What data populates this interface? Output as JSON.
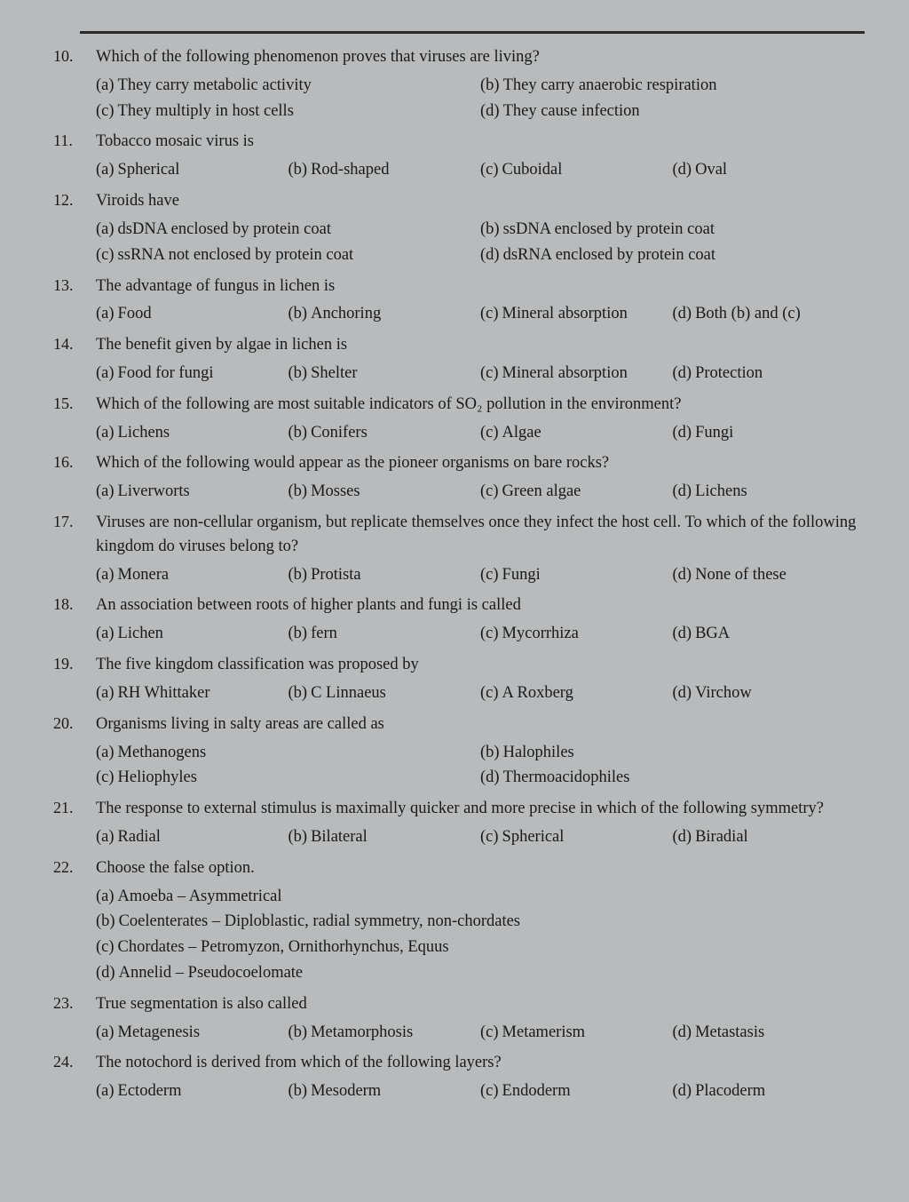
{
  "colors": {
    "background": "#b8babb",
    "text": "#1a1a1a",
    "rule": "#2a2a2a"
  },
  "typography": {
    "font_family": "Georgia, Times New Roman, serif",
    "body_size_pt": 14,
    "line_height": 1.45
  },
  "questions": [
    {
      "num": "10.",
      "text": "Which of the following phenomenon proves that viruses are living?",
      "layout": "two",
      "options": [
        {
          "label": "(a)",
          "text": "They carry metabolic activity"
        },
        {
          "label": "(b)",
          "text": "They carry anaerobic respiration"
        },
        {
          "label": "(c)",
          "text": "They multiply in host cells"
        },
        {
          "label": "(d)",
          "text": "They cause infection"
        }
      ]
    },
    {
      "num": "11.",
      "text": "Tobacco mosaic virus is",
      "layout": "four",
      "options": [
        {
          "label": "(a)",
          "text": "Spherical"
        },
        {
          "label": "(b)",
          "text": "Rod-shaped"
        },
        {
          "label": "(c)",
          "text": "Cuboidal"
        },
        {
          "label": "(d)",
          "text": "Oval"
        }
      ]
    },
    {
      "num": "12.",
      "text": "Viroids have",
      "layout": "two",
      "options": [
        {
          "label": "(a)",
          "text": "dsDNA enclosed by protein coat"
        },
        {
          "label": "(b)",
          "text": "ssDNA enclosed by protein coat"
        },
        {
          "label": "(c)",
          "text": "ssRNA not enclosed by protein coat"
        },
        {
          "label": "(d)",
          "text": "dsRNA enclosed by protein coat"
        }
      ]
    },
    {
      "num": "13.",
      "text": "The advantage of fungus in lichen is",
      "layout": "four",
      "options": [
        {
          "label": "(a)",
          "text": "Food"
        },
        {
          "label": "(b)",
          "text": "Anchoring"
        },
        {
          "label": "(c)",
          "text": "Mineral absorption"
        },
        {
          "label": "(d)",
          "text": "Both (b) and (c)"
        }
      ]
    },
    {
      "num": "14.",
      "text": "The benefit given by algae in lichen is",
      "layout": "four",
      "options": [
        {
          "label": "(a)",
          "text": "Food for fungi"
        },
        {
          "label": "(b)",
          "text": "Shelter"
        },
        {
          "label": "(c)",
          "text": "Mineral absorption"
        },
        {
          "label": "(d)",
          "text": "Protection"
        }
      ]
    },
    {
      "num": "15.",
      "text": "Which of the following are most suitable indicators of SO₂ pollution in the environment?",
      "layout": "four",
      "options": [
        {
          "label": "(a)",
          "text": "Lichens"
        },
        {
          "label": "(b)",
          "text": "Conifers"
        },
        {
          "label": "(c)",
          "text": "Algae"
        },
        {
          "label": "(d)",
          "text": "Fungi"
        }
      ]
    },
    {
      "num": "16.",
      "text": "Which of the following would appear as the pioneer organisms on bare rocks?",
      "layout": "four",
      "options": [
        {
          "label": "(a)",
          "text": "Liverworts"
        },
        {
          "label": "(b)",
          "text": "Mosses"
        },
        {
          "label": "(c)",
          "text": "Green algae"
        },
        {
          "label": "(d)",
          "text": "Lichens"
        }
      ]
    },
    {
      "num": "17.",
      "text": "Viruses are non-cellular organism, but replicate themselves once they infect the host cell. To which of the following kingdom do viruses belong to?",
      "layout": "four",
      "options": [
        {
          "label": "(a)",
          "text": "Monera"
        },
        {
          "label": "(b)",
          "text": "Protista"
        },
        {
          "label": "(c)",
          "text": "Fungi"
        },
        {
          "label": "(d)",
          "text": "None of these"
        }
      ]
    },
    {
      "num": "18.",
      "text": "An association between roots of higher plants and fungi is called",
      "layout": "four",
      "options": [
        {
          "label": "(a)",
          "text": "Lichen"
        },
        {
          "label": "(b)",
          "text": "fern"
        },
        {
          "label": "(c)",
          "text": "Mycorrhiza"
        },
        {
          "label": "(d)",
          "text": "BGA"
        }
      ]
    },
    {
      "num": "19.",
      "text": "The five kingdom classification was proposed by",
      "layout": "four",
      "options": [
        {
          "label": "(a)",
          "text": "RH Whittaker"
        },
        {
          "label": "(b)",
          "text": "C Linnaeus"
        },
        {
          "label": "(c)",
          "text": "A Roxberg"
        },
        {
          "label": "(d)",
          "text": "Virchow"
        }
      ]
    },
    {
      "num": "20.",
      "text": "Organisms living in salty areas are called as",
      "layout": "two",
      "options": [
        {
          "label": "(a)",
          "text": "Methanogens"
        },
        {
          "label": "(b)",
          "text": "Halophiles"
        },
        {
          "label": "(c)",
          "text": "Heliophyles"
        },
        {
          "label": "(d)",
          "text": "Thermoacidophiles"
        }
      ]
    },
    {
      "num": "21.",
      "text": "The response to external stimulus is maximally quicker and more precise in which of the following symmetry?",
      "layout": "four",
      "options": [
        {
          "label": "(a)",
          "text": "Radial"
        },
        {
          "label": "(b)",
          "text": "Bilateral"
        },
        {
          "label": "(c)",
          "text": "Spherical"
        },
        {
          "label": "(d)",
          "text": "Biradial"
        }
      ]
    },
    {
      "num": "22.",
      "text": "Choose the false option.",
      "layout": "one",
      "options": [
        {
          "label": "(a)",
          "text": "Amoeba – Asymmetrical"
        },
        {
          "label": "(b)",
          "text": "Coelenterates – Diploblastic, radial symmetry, non-chordates"
        },
        {
          "label": "(c)",
          "text": "Chordates – Petromyzon, Ornithorhynchus, Equus"
        },
        {
          "label": "(d)",
          "text": "Annelid – Pseudocoelomate"
        }
      ]
    },
    {
      "num": "23.",
      "text": "True segmentation is also called",
      "layout": "four",
      "options": [
        {
          "label": "(a)",
          "text": "Metagenesis"
        },
        {
          "label": "(b)",
          "text": "Metamorphosis"
        },
        {
          "label": "(c)",
          "text": "Metamerism"
        },
        {
          "label": "(d)",
          "text": "Metastasis"
        }
      ]
    },
    {
      "num": "24.",
      "text": "The notochord is derived from which of the following layers?",
      "layout": "four",
      "options": [
        {
          "label": "(a)",
          "text": "Ectoderm"
        },
        {
          "label": "(b)",
          "text": "Mesoderm"
        },
        {
          "label": "(c)",
          "text": "Endoderm"
        },
        {
          "label": "(d)",
          "text": "Placoderm"
        }
      ]
    }
  ]
}
